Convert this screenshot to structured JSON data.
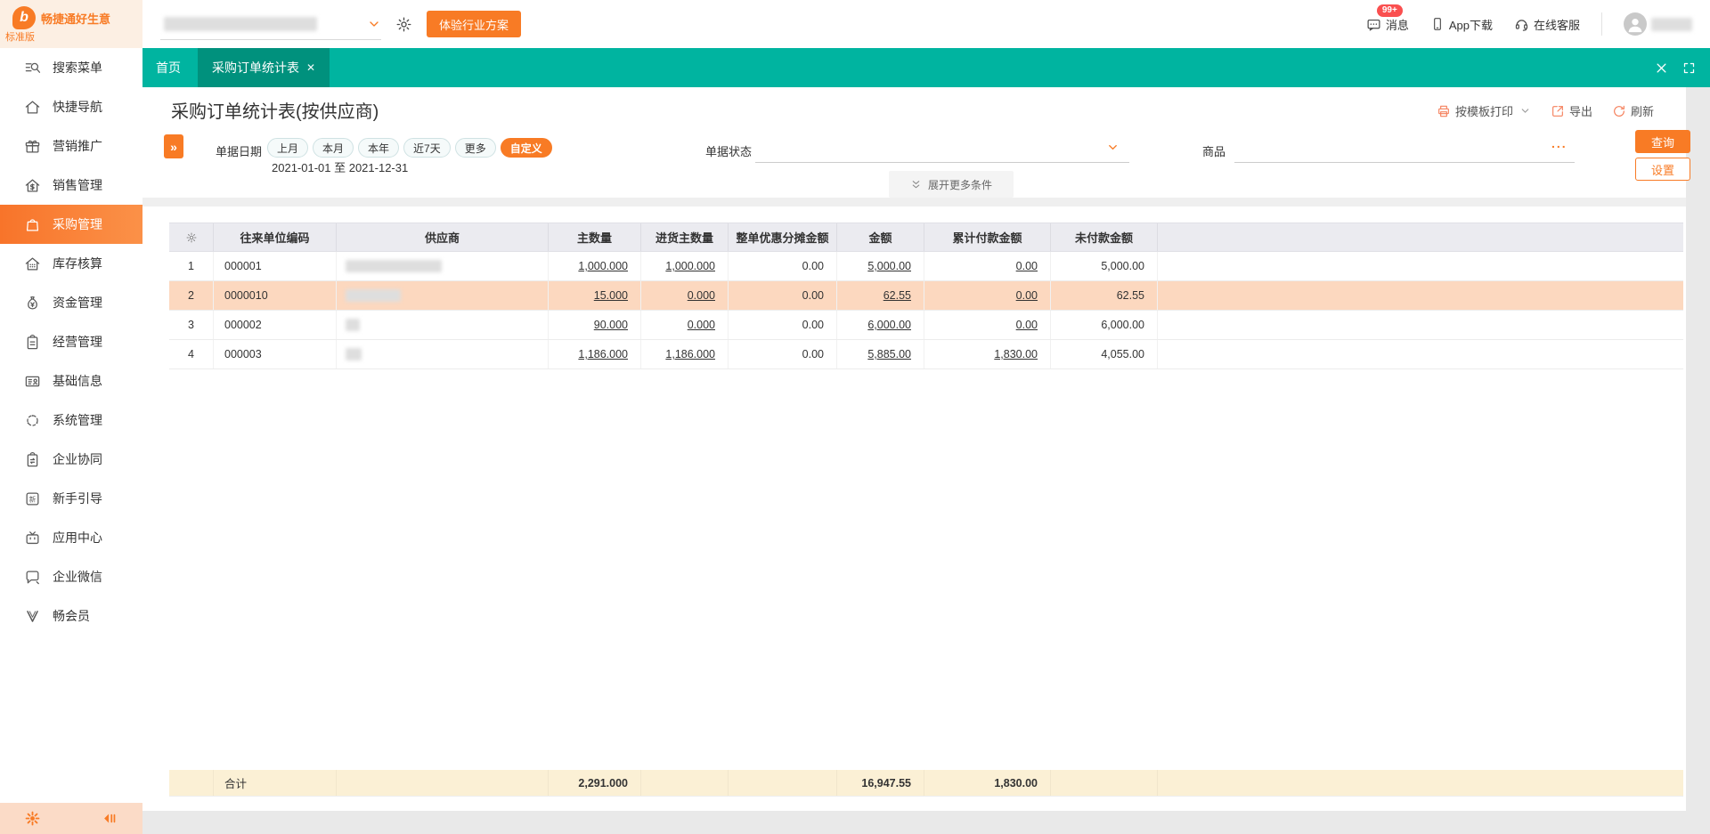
{
  "topbar": {
    "logo_title": "畅捷通好生意",
    "edition": "标准版",
    "trial_button": "体验行业方案",
    "messages": "消息",
    "messages_badge": "99+",
    "app_download": "App下载",
    "online_service": "在线客服"
  },
  "tabs": {
    "home": "首页",
    "report": "采购订单统计表"
  },
  "sidebar": {
    "items": [
      {
        "label": "搜索菜单",
        "icon": "search",
        "active": false
      },
      {
        "label": "快捷导航",
        "icon": "home",
        "active": false
      },
      {
        "label": "营销推广",
        "icon": "gift",
        "active": false
      },
      {
        "label": "销售管理",
        "icon": "sale",
        "active": false
      },
      {
        "label": "采购管理",
        "icon": "bag",
        "active": true
      },
      {
        "label": "库存核算",
        "icon": "warehouse",
        "active": false
      },
      {
        "label": "资金管理",
        "icon": "money",
        "active": false
      },
      {
        "label": "经营管理",
        "icon": "clipboard",
        "active": false
      },
      {
        "label": "基础信息",
        "icon": "idcard",
        "active": false
      },
      {
        "label": "系统管理",
        "icon": "system",
        "active": false
      },
      {
        "label": "企业协同",
        "icon": "collab",
        "active": false
      },
      {
        "label": "新手引导",
        "icon": "new",
        "active": false
      },
      {
        "label": "应用中心",
        "icon": "apps",
        "active": false
      },
      {
        "label": "企业微信",
        "icon": "wechat",
        "active": false
      },
      {
        "label": "畅会员",
        "icon": "vip",
        "active": false
      }
    ]
  },
  "page": {
    "title": "采购订单统计表(按供应商)",
    "print_button": "按模板打印",
    "export_button": "导出",
    "refresh_button": "刷新"
  },
  "filters": {
    "date_label": "单据日期",
    "quick_ranges": [
      "上月",
      "本月",
      "本年",
      "近7天",
      "更多"
    ],
    "custom_label": "自定义",
    "date_range": "2021-01-01 至 2021-12-31",
    "status_label": "单据状态",
    "product_label": "商品",
    "query_button": "查询",
    "settings_button": "设置",
    "expand_more": "展开更多条件"
  },
  "table": {
    "columns": [
      "往来单位编码",
      "供应商",
      "主数量",
      "进货主数量",
      "整单优惠分摊金额",
      "金额",
      "累计付款金额",
      "未付款金额"
    ],
    "rows": [
      {
        "index": "1",
        "code": "000001",
        "qty": "1,000.000",
        "purchase_qty": "1,000.000",
        "discount": "0.00",
        "amount": "5,000.00",
        "paid": "0.00",
        "unpaid": "5,000.00",
        "highlighted": false
      },
      {
        "index": "2",
        "code": "0000010",
        "qty": "15.000",
        "purchase_qty": "0.000",
        "discount": "0.00",
        "amount": "62.55",
        "paid": "0.00",
        "unpaid": "62.55",
        "highlighted": true
      },
      {
        "index": "3",
        "code": "000002",
        "qty": "90.000",
        "purchase_qty": "0.000",
        "discount": "0.00",
        "amount": "6,000.00",
        "paid": "0.00",
        "unpaid": "6,000.00",
        "highlighted": false
      },
      {
        "index": "4",
        "code": "000003",
        "qty": "1,186.000",
        "purchase_qty": "1,186.000",
        "discount": "0.00",
        "amount": "5,885.00",
        "paid": "1,830.00",
        "unpaid": "4,055.00",
        "highlighted": false
      }
    ],
    "total_label": "合计",
    "totals": {
      "qty": "2,291.000",
      "amount": "16,947.55",
      "paid": "1,830.00"
    }
  }
}
